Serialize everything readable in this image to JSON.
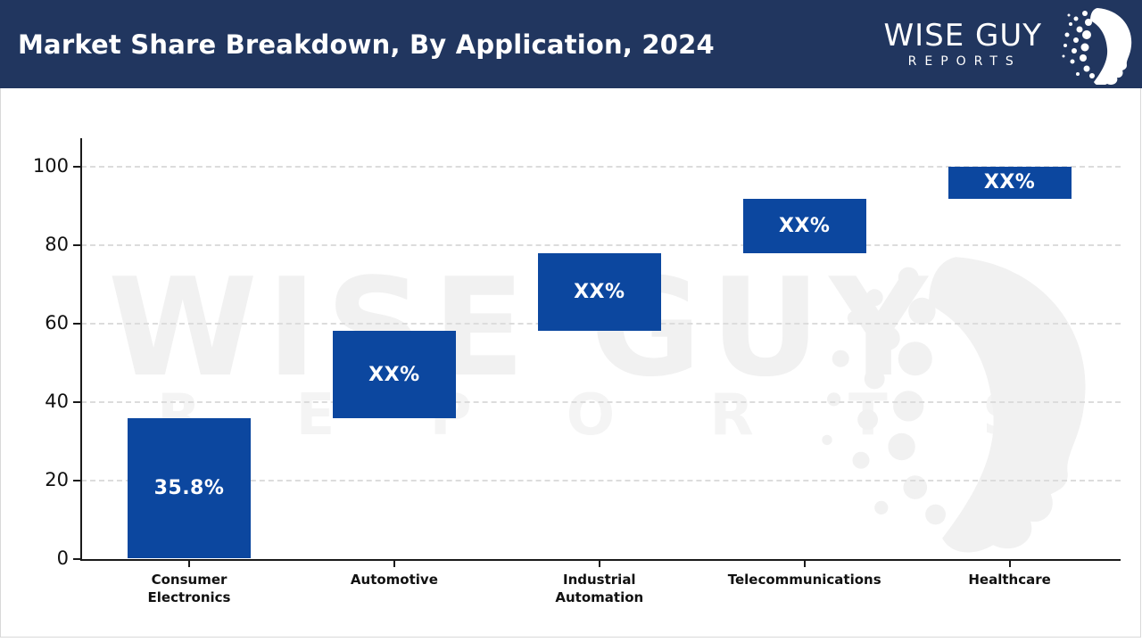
{
  "header": {
    "title": "Market Share Breakdown, By Application, 2024",
    "background_color": "#21365f",
    "logo": {
      "line1": "WISE GUY",
      "line2": "REPORTS"
    }
  },
  "watermark": {
    "line1": "WISE GUY",
    "line2": "R E P O R T S"
  },
  "chart_data": {
    "type": "bar",
    "variant": "waterfall",
    "title": "Market Share Breakdown, By Application, 2024",
    "categories": [
      "Consumer Electronics",
      "Automotive",
      "Industrial Automation",
      "Telecommunications",
      "Healthcare"
    ],
    "tick_labels": [
      "Consumer\nElectronics",
      "Automotive",
      "Industrial\nAutomation",
      "Telecommunications",
      "Healthcare"
    ],
    "segments": [
      {
        "category": "Consumer Electronics",
        "start": 0,
        "end": 35.8,
        "label": "35.8%"
      },
      {
        "category": "Automotive",
        "start": 35.8,
        "end": 58.0,
        "label": "XX%"
      },
      {
        "category": "Industrial Automation",
        "start": 58.0,
        "end": 77.8,
        "label": "XX%"
      },
      {
        "category": "Telecommunications",
        "start": 77.8,
        "end": 91.8,
        "label": "XX%"
      },
      {
        "category": "Healthcare",
        "start": 91.8,
        "end": 100,
        "label": "XX%"
      }
    ],
    "xlabel": "",
    "ylabel": "",
    "ylim": [
      0,
      107
    ],
    "yticks": [
      0,
      20,
      40,
      60,
      80,
      100
    ],
    "grid": "horizontal-dashed",
    "legend": "none",
    "bar_color": "#0c479f",
    "grid_color": "#dcdcdc",
    "axis_color": "#1a1a1a"
  }
}
